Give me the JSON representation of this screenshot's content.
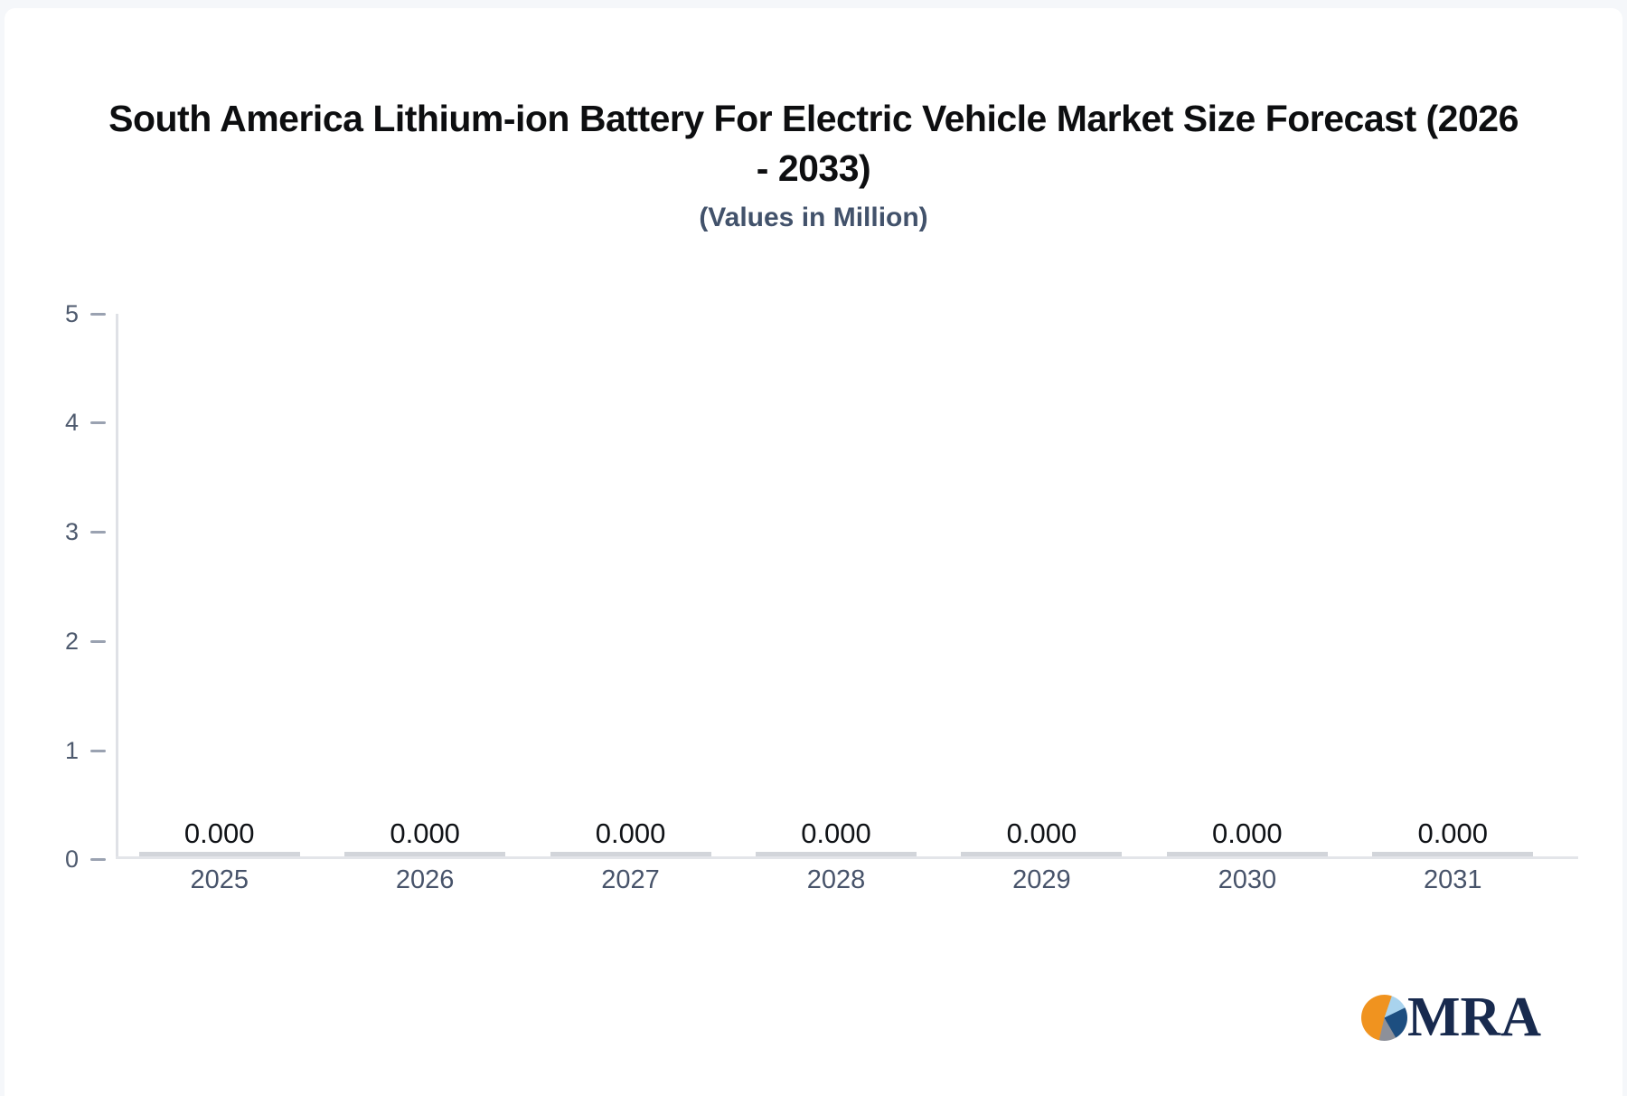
{
  "page": {
    "background_color": "#f5f7fa",
    "card_color": "#ffffff"
  },
  "header": {
    "title_line1": "South America Lithium-ion Battery For Electric Vehicle Market Size Forecast (2026",
    "title_line2": "- 2033)",
    "subtitle": "(Values in Million)",
    "title_color": "#0d0e10",
    "subtitle_color": "#42526b"
  },
  "chart_data": {
    "type": "bar",
    "title": "South America Lithium-ion Battery For Electric Vehicle Market Size Forecast (2026 - 2033)",
    "subtitle": "(Values in Million)",
    "categories": [
      "2025",
      "2026",
      "2027",
      "2028",
      "2029",
      "2030",
      "2031"
    ],
    "values": [
      0,
      0,
      0,
      0,
      0,
      0,
      0
    ],
    "value_labels": [
      "0.000",
      "0.000",
      "0.000",
      "0.000",
      "0.000",
      "0.000",
      "0.000"
    ],
    "xlabel": "",
    "ylabel": "",
    "ylim": [
      0,
      5
    ],
    "yticks": [
      0,
      1,
      2,
      3,
      4,
      5
    ],
    "yticks_display_top_to_bottom": [
      "5",
      "4",
      "3",
      "2",
      "1",
      "0"
    ],
    "grid": false,
    "legend": false,
    "bar_color": "#d2d5da",
    "axis_line_color": "#e0e2e7",
    "tick_mark_color": "#9aa2b1",
    "tick_label_color": "#4e5a6e",
    "category_label_color": "#47536a",
    "value_label_color": "#101317"
  },
  "footer": {
    "logo_text": "MRA",
    "logo_text_color": "#182a4e",
    "logo_pie_colors": {
      "orange": "#f0931f",
      "light_blue": "#a9d3ee",
      "navy": "#1d4e80",
      "gray": "#8d9099"
    }
  }
}
